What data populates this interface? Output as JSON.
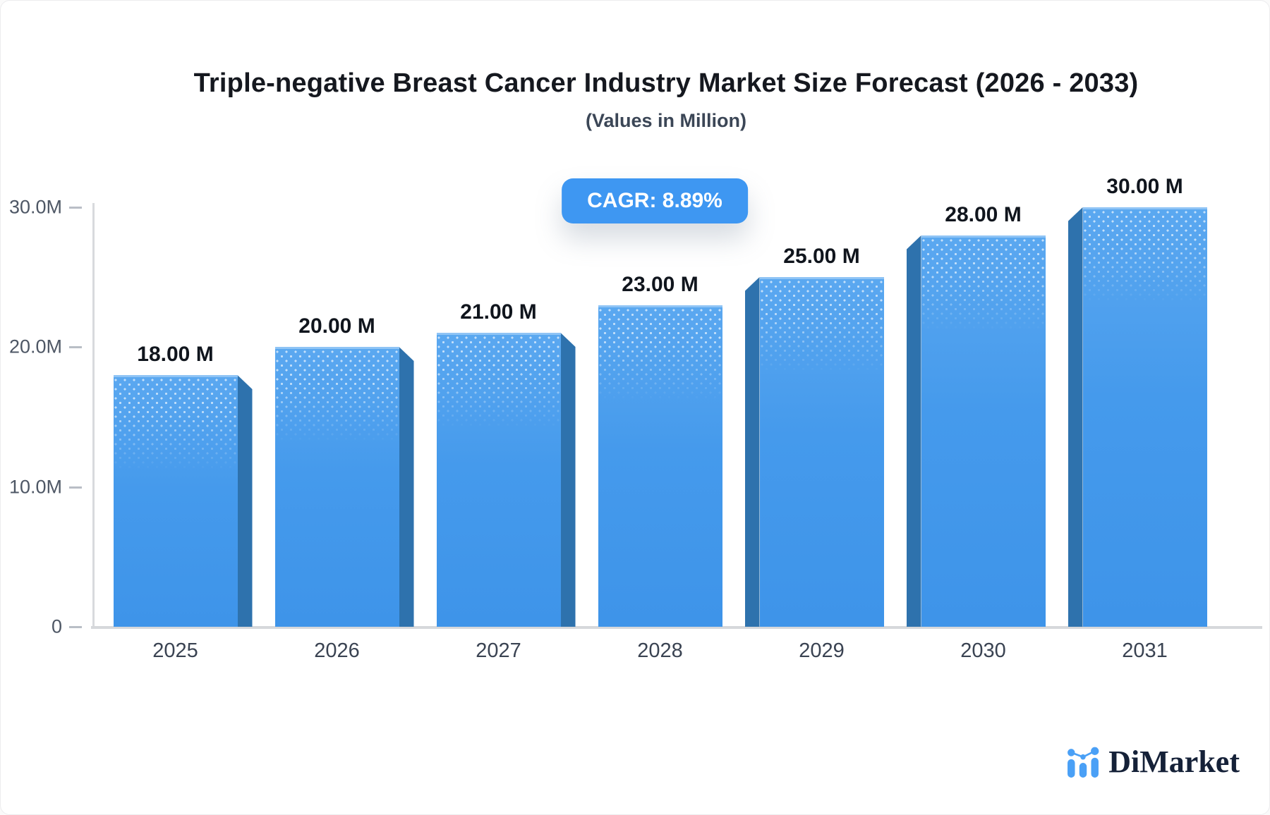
{
  "header": {
    "title": "Triple-negative Breast Cancer Industry Market Size Forecast (2026 - 2033)",
    "subtitle": "(Values in Million)"
  },
  "badge": {
    "label": "CAGR: 8.89%"
  },
  "brand": {
    "name": "DiMarket",
    "icon": "mini-bar-line-chart-icon"
  },
  "colors": {
    "bar_face_top": "#5ba8f0",
    "bar_face_bottom": "#3e94e9",
    "bar_side": "#2e72ad",
    "badge_bg": "#3e97f2",
    "axis": "#d8dadd",
    "brand_blue": "#4aa0f6",
    "brand_navy": "#152138"
  },
  "chart_data": {
    "type": "bar",
    "categories": [
      "2025",
      "2026",
      "2027",
      "2028",
      "2029",
      "2030",
      "2031"
    ],
    "values": [
      18,
      20,
      21,
      23,
      25,
      28,
      30
    ],
    "value_labels": [
      "18.00 M",
      "20.00 M",
      "21.00 M",
      "23.00 M",
      "25.00 M",
      "28.00 M",
      "30.00 M"
    ],
    "title": "Triple-negative Breast Cancer Industry Market Size Forecast (2026 - 2033)",
    "subtitle": "(Values in Million)",
    "xlabel": "",
    "ylabel": "",
    "y_ticks": [
      {
        "value": 0,
        "label": "0"
      },
      {
        "value": 10,
        "label": "10.0M"
      },
      {
        "value": 20,
        "label": "20.0M"
      },
      {
        "value": 30,
        "label": "30.0M"
      }
    ],
    "ylim": [
      0,
      30
    ],
    "grid": false,
    "legend": false,
    "style": "3d-extruded-bars, perspective toward center"
  }
}
